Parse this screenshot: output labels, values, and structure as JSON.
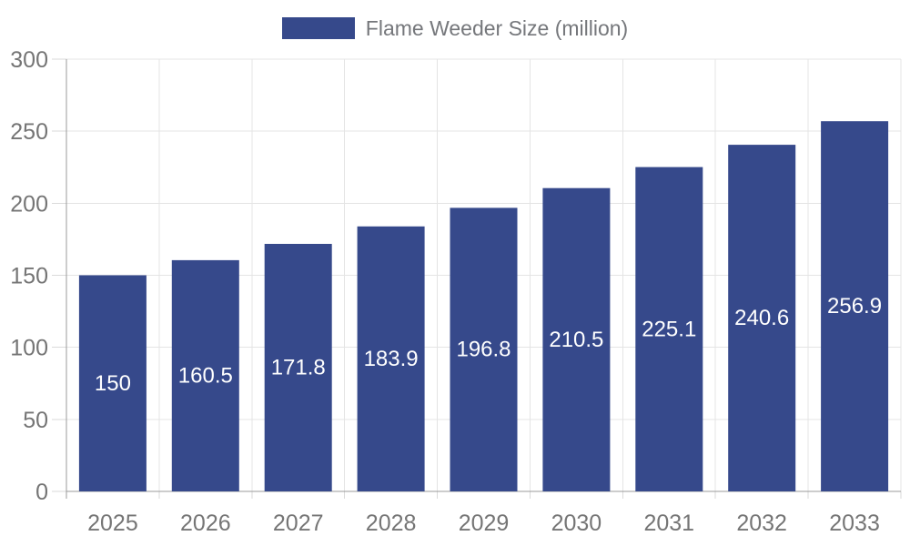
{
  "legend": {
    "label": "Flame Weeder Size (million)"
  },
  "chart_data": {
    "type": "bar",
    "title": "Flame Weeder Size (million)",
    "categories": [
      "2025",
      "2026",
      "2027",
      "2028",
      "2029",
      "2030",
      "2031",
      "2032",
      "2033"
    ],
    "values": [
      150,
      160.5,
      171.8,
      183.9,
      196.8,
      210.5,
      225.1,
      240.6,
      256.9
    ],
    "value_labels": [
      "150",
      "160.5",
      "171.8",
      "183.9",
      "196.8",
      "210.5",
      "225.1",
      "240.6",
      "256.9"
    ],
    "xlabel": "",
    "ylabel": "",
    "ylim": [
      0,
      300
    ],
    "yticks": [
      0,
      50,
      100,
      150,
      200,
      250,
      300
    ],
    "grid": true,
    "legend_position": "top-center",
    "value_label_position": "inside-center",
    "colors": {
      "bar": "#36498B",
      "value_label": "#FFFFFF",
      "axis_line": "#9B9B9B",
      "grid_line": "#E4E4E4",
      "tick_line": "#DADADA",
      "tick_label": "#757575",
      "legend_text": "#75777B",
      "background": "#FFFFFF"
    }
  }
}
